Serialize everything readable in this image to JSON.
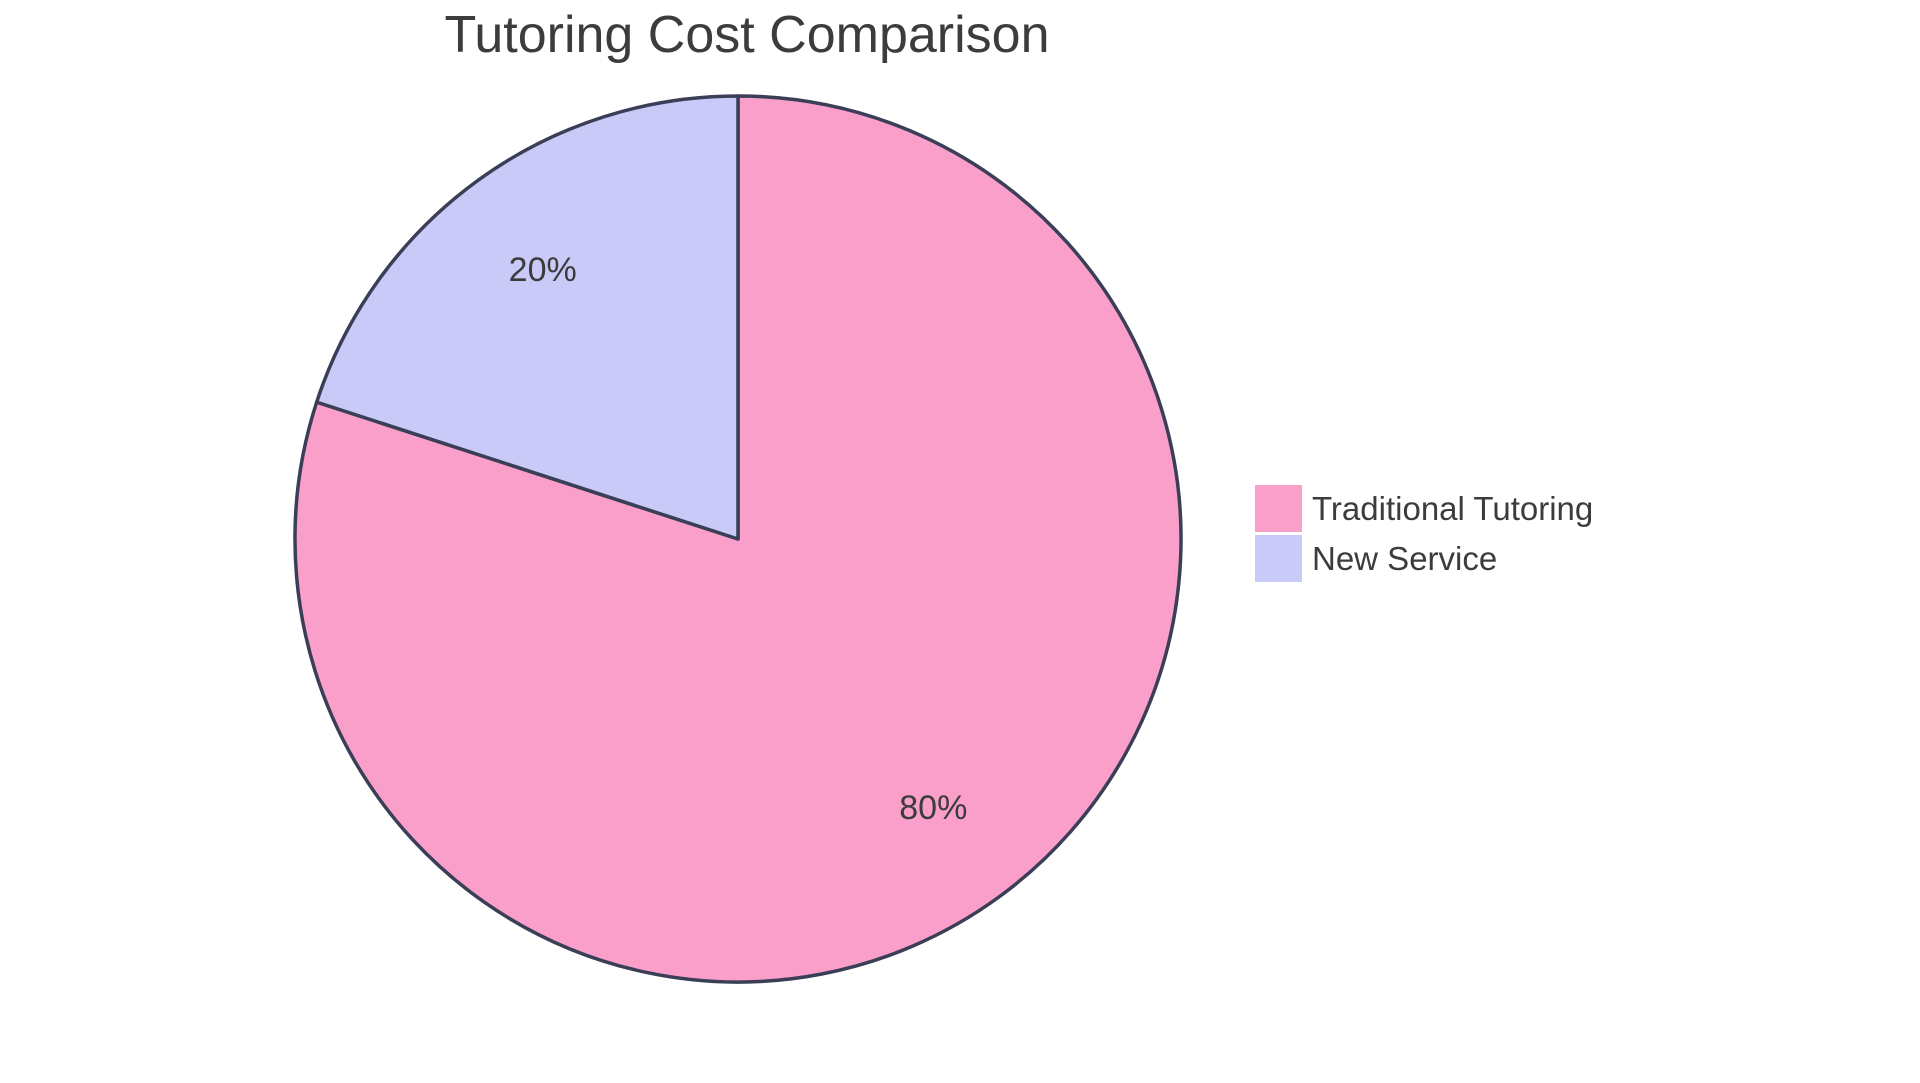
{
  "page": {
    "background_color": "#FFFFFF"
  },
  "chart_data": {
    "type": "pie",
    "title": "Tutoring Cost Comparison",
    "slices": [
      {
        "label": "Traditional Tutoring",
        "value": 80,
        "percent_label": "80%",
        "color": "#FA9FCA"
      },
      {
        "label": "New Service",
        "value": 20,
        "percent_label": "20%",
        "color": "#C9CAF8"
      }
    ],
    "start_angle_deg": 0,
    "direction": "clockwise",
    "legend_position": "right",
    "slice_border_color": "#3A3E56",
    "label_color": "#3C3C3C",
    "title_color": "#3C3C3C"
  }
}
